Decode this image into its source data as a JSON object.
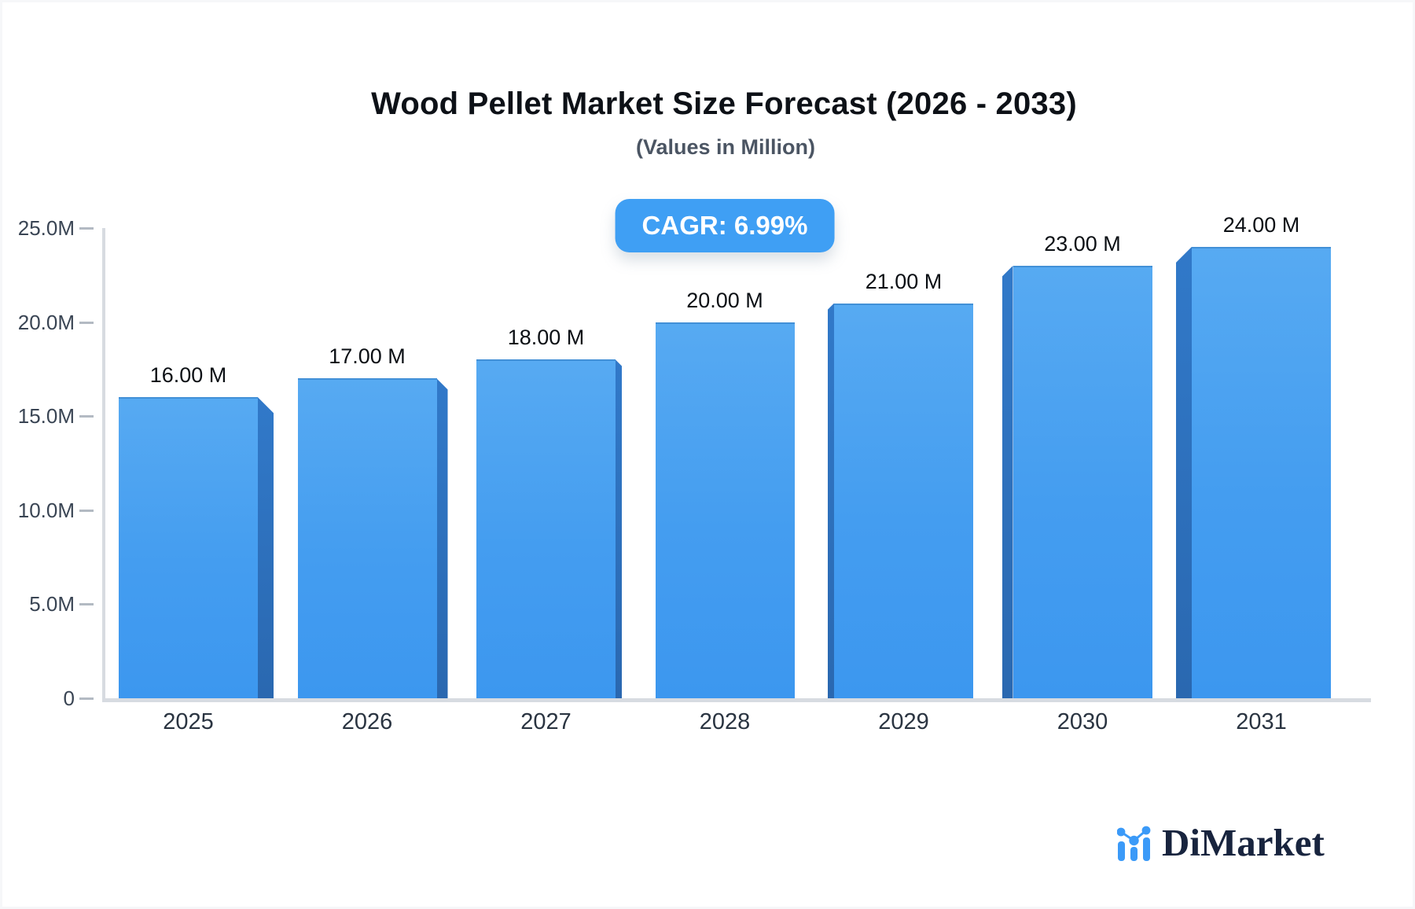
{
  "title": "Wood Pellet Market Size Forecast (2026 - 2033)",
  "subtitle": "(Values in Million)",
  "cagr_badge": "CAGR: 6.99%",
  "brand": {
    "name": "DiMarket",
    "icon": "bar-chart-trend-icon",
    "icon_color": "#3b9af8",
    "text_color": "#18243e"
  },
  "chart_data": {
    "type": "bar",
    "title": "Wood Pellet Market Size Forecast (2026 - 2033)",
    "subtitle": "(Values in Million)",
    "cagr": "6.99%",
    "unit": "Million",
    "categories": [
      "2025",
      "2026",
      "2027",
      "2028",
      "2029",
      "2030",
      "2031"
    ],
    "values": [
      16,
      17,
      18,
      20,
      21,
      23,
      24
    ],
    "value_labels": [
      "16.00 M",
      "17.00 M",
      "18.00 M",
      "20.00 M",
      "21.00 M",
      "23.00 M",
      "24.00 M"
    ],
    "ytick_values": [
      0,
      5,
      10,
      15,
      20,
      25
    ],
    "ytick_labels": [
      "0",
      "5.0M",
      "10.0M",
      "15.0M",
      "20.0M",
      "25.0M"
    ],
    "ylim": [
      0,
      25
    ],
    "grid": false,
    "legend": false,
    "style": "3d-perspective-bars",
    "bar_color": "#449df0",
    "bar_side_color": "#2e72bd",
    "badge_color": "#3f9ff4",
    "axis_color": "#d7dbe1"
  }
}
